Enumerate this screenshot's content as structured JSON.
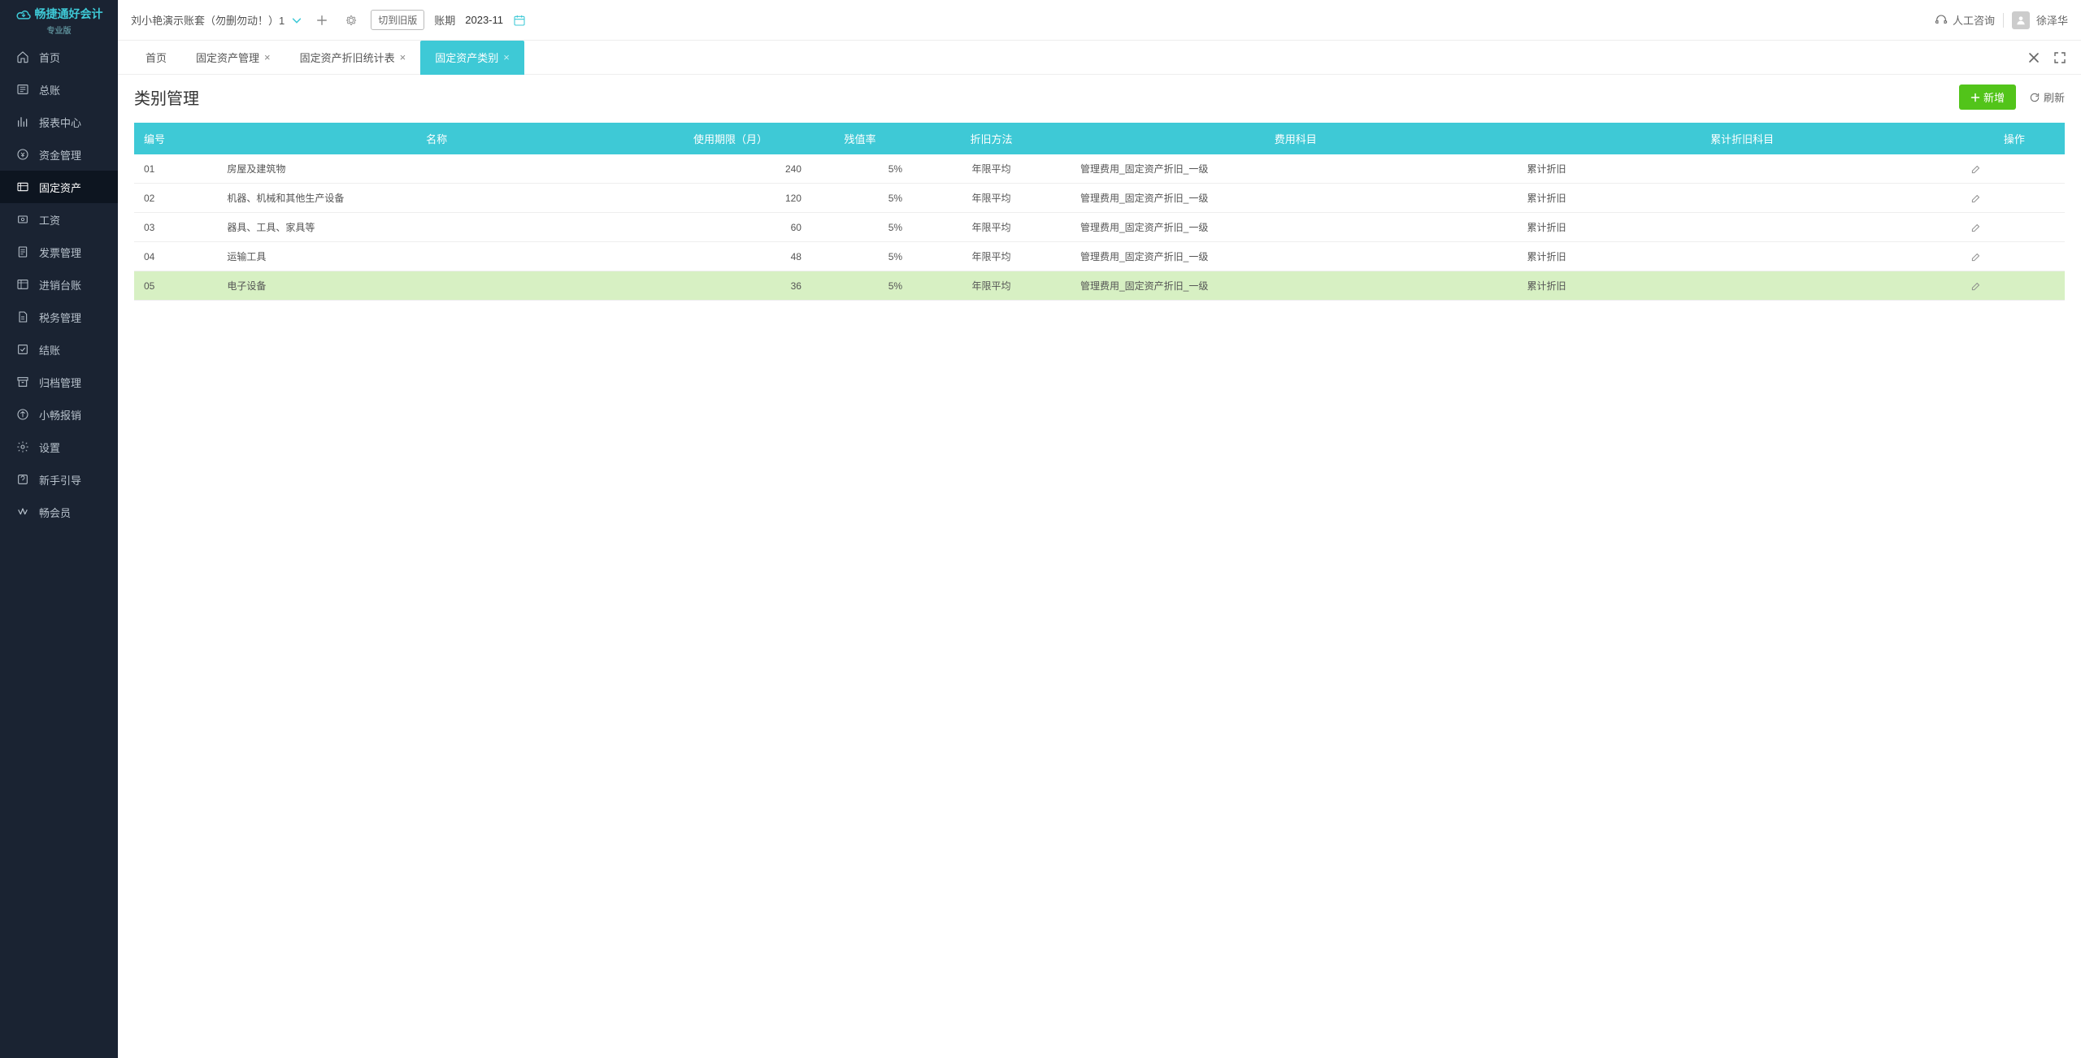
{
  "brand": {
    "name": "畅捷通好会计",
    "edition": "专业版"
  },
  "topbar": {
    "account_name": "刘小艳演示账套（勿删勿动！）1",
    "old_version_btn": "切到旧版",
    "period_label": "账期",
    "period_value": "2023-11",
    "consult_label": "人工咨询",
    "user_name": "徐泽华"
  },
  "sidebar": {
    "items": [
      {
        "key": "home",
        "label": "首页"
      },
      {
        "key": "gl",
        "label": "总账"
      },
      {
        "key": "report",
        "label": "报表中心"
      },
      {
        "key": "fund",
        "label": "资金管理"
      },
      {
        "key": "asset",
        "label": "固定资产"
      },
      {
        "key": "salary",
        "label": "工资"
      },
      {
        "key": "invoice",
        "label": "发票管理"
      },
      {
        "key": "purchase",
        "label": "进销台账"
      },
      {
        "key": "tax",
        "label": "税务管理"
      },
      {
        "key": "close",
        "label": "结账"
      },
      {
        "key": "archive",
        "label": "归档管理"
      },
      {
        "key": "xc",
        "label": "小畅报销"
      },
      {
        "key": "settings",
        "label": "设置"
      },
      {
        "key": "guide",
        "label": "新手引导"
      },
      {
        "key": "vip",
        "label": "畅会员"
      }
    ],
    "active_key": "asset"
  },
  "tabs": {
    "items": [
      {
        "key": "home",
        "label": "首页",
        "closable": false
      },
      {
        "key": "asset_mgmt",
        "label": "固定资产管理",
        "closable": true
      },
      {
        "key": "dep_report",
        "label": "固定资产折旧统计表",
        "closable": true
      },
      {
        "key": "asset_type",
        "label": "固定资产类别",
        "closable": true
      }
    ],
    "active_key": "asset_type"
  },
  "page": {
    "title": "类别管理",
    "add_btn": "新增",
    "refresh_btn": "刷新"
  },
  "table": {
    "columns": [
      {
        "key": "code",
        "label": "编号"
      },
      {
        "key": "name",
        "label": "名称"
      },
      {
        "key": "months",
        "label": "使用期限（月）"
      },
      {
        "key": "rate",
        "label": "残值率"
      },
      {
        "key": "method",
        "label": "折旧方法"
      },
      {
        "key": "expense",
        "label": "费用科目"
      },
      {
        "key": "depacc",
        "label": "累计折旧科目"
      },
      {
        "key": "op",
        "label": "操作"
      }
    ],
    "rows": [
      {
        "code": "01",
        "name": "房屋及建筑物",
        "months": "240",
        "rate": "5%",
        "method": "年限平均",
        "expense": "管理费用_固定资产折旧_一级",
        "depacc": "累计折旧",
        "highlight": false
      },
      {
        "code": "02",
        "name": "机器、机械和其他生产设备",
        "months": "120",
        "rate": "5%",
        "method": "年限平均",
        "expense": "管理费用_固定资产折旧_一级",
        "depacc": "累计折旧",
        "highlight": false
      },
      {
        "code": "03",
        "name": "器具、工具、家具等",
        "months": "60",
        "rate": "5%",
        "method": "年限平均",
        "expense": "管理费用_固定资产折旧_一级",
        "depacc": "累计折旧",
        "highlight": false
      },
      {
        "code": "04",
        "name": "运输工具",
        "months": "48",
        "rate": "5%",
        "method": "年限平均",
        "expense": "管理费用_固定资产折旧_一级",
        "depacc": "累计折旧",
        "highlight": false
      },
      {
        "code": "05",
        "name": "电子设备",
        "months": "36",
        "rate": "5%",
        "method": "年限平均",
        "expense": "管理费用_固定资产折旧_一级",
        "depacc": "累计折旧",
        "highlight": true
      }
    ]
  },
  "colors": {
    "sidebar_bg": "#1a2332",
    "accent": "#3ec9d6",
    "add_btn": "#52c41a",
    "row_highlight": "#d7f0c3"
  }
}
